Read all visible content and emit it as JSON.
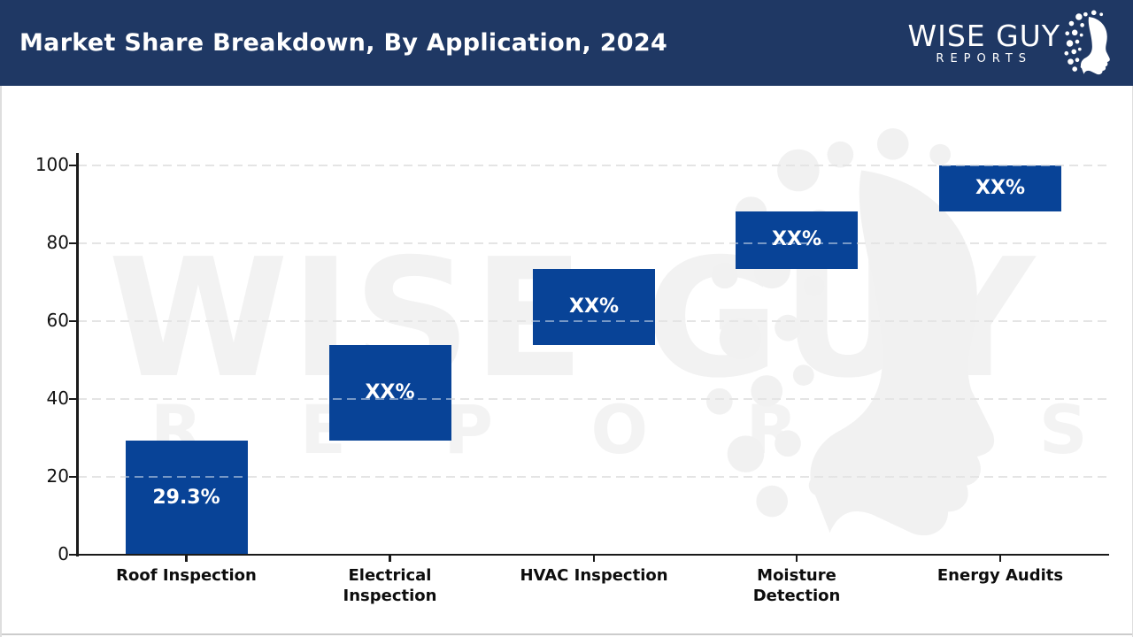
{
  "header": {
    "title": "Market Share Breakdown, By Application, 2024",
    "background_color": "#1f3864",
    "logo": {
      "wordmark": "WISE GUY",
      "subtext": "REPORTS"
    }
  },
  "watermark": {
    "line1": "WISE GUY",
    "line2": "R E P O R T S"
  },
  "chart_data": {
    "type": "bar",
    "subtype": "waterfall",
    "title": "Market Share Breakdown, By Application, 2024",
    "categories": [
      "Roof Inspection",
      "Electrical Inspection",
      "HVAC Inspection",
      "Moisture Detection",
      "Energy Audits"
    ],
    "tick_labels": [
      "Roof Inspection",
      "Electrical\nInspection",
      "HVAC Inspection",
      "Moisture Detection",
      "Energy Audits"
    ],
    "segments": [
      {
        "category": "Roof Inspection",
        "start": 0,
        "end": 29.3,
        "label": "29.3%"
      },
      {
        "category": "Electrical Inspection",
        "start": 29.3,
        "end": 53.9,
        "label": "XX%"
      },
      {
        "category": "HVAC Inspection",
        "start": 53.9,
        "end": 73.5,
        "label": "XX%"
      },
      {
        "category": "Moisture Detection",
        "start": 73.5,
        "end": 88.2,
        "label": "XX%"
      },
      {
        "category": "Energy Audits",
        "start": 88.2,
        "end": 100,
        "label": "XX%"
      }
    ],
    "xlabel": "",
    "ylabel": "",
    "ylim": [
      0,
      100
    ],
    "yticks": [
      0,
      20,
      40,
      60,
      80,
      100
    ],
    "grid": "horizontal-dashed",
    "legend": "none",
    "bar_color": "#084397",
    "bar_label_color": "#ffffff",
    "axis_color": "#1a1a1a",
    "grid_color": "#cfcfcf",
    "tick_label_color": "#111111"
  }
}
